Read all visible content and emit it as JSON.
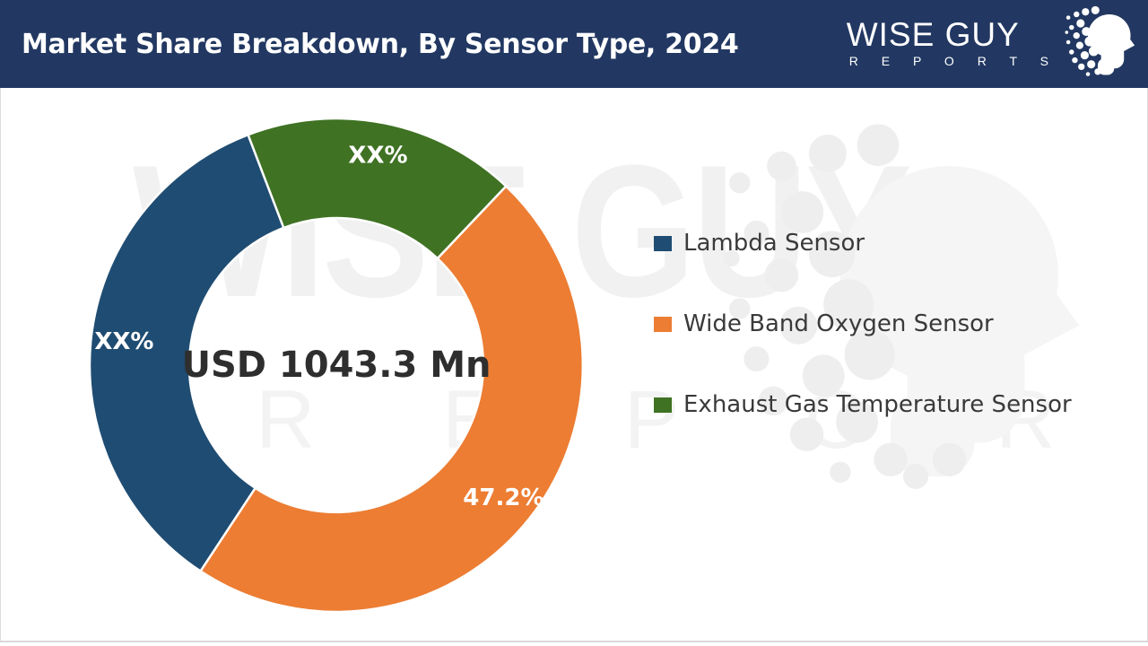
{
  "header": {
    "title": "Market Share Breakdown, By Sensor Type, 2024",
    "bg_color": "#223862",
    "logo": {
      "line1": "WISE GUY",
      "line2": "R E P O R T S"
    }
  },
  "watermark": {
    "line1": "WISE GUY",
    "line2": "R E P O R T S"
  },
  "chart_data": {
    "type": "pie",
    "variant": "donut",
    "title": "Market Share Breakdown, By Sensor Type, 2024",
    "center_label": "USD 1043.3 Mn",
    "legend_position": "right",
    "units": "percent share",
    "segments": [
      {
        "label": "Lambda Sensor",
        "color": "#1F4C72",
        "percent": 34.9,
        "value_label": "XX%",
        "start_deg": 213.4
      },
      {
        "label": "Wide Band Oxygen Sensor",
        "color": "#EC7D33",
        "percent": 47.2,
        "value_label": "47.2%",
        "start_deg": 43.48
      },
      {
        "label": "Exhaust Gas Temperature Sensor",
        "color": "#3F7223",
        "percent": 17.9,
        "value_label": "XX%",
        "start_deg": 339.04
      }
    ]
  },
  "colors": {
    "header_bg": "#223862",
    "separator": "#ffffff",
    "center_text": "#2e2e2e",
    "legend_text": "#3a3a3a",
    "watermark": "#f1f1f1",
    "frame_line": "#d9d9d9"
  }
}
